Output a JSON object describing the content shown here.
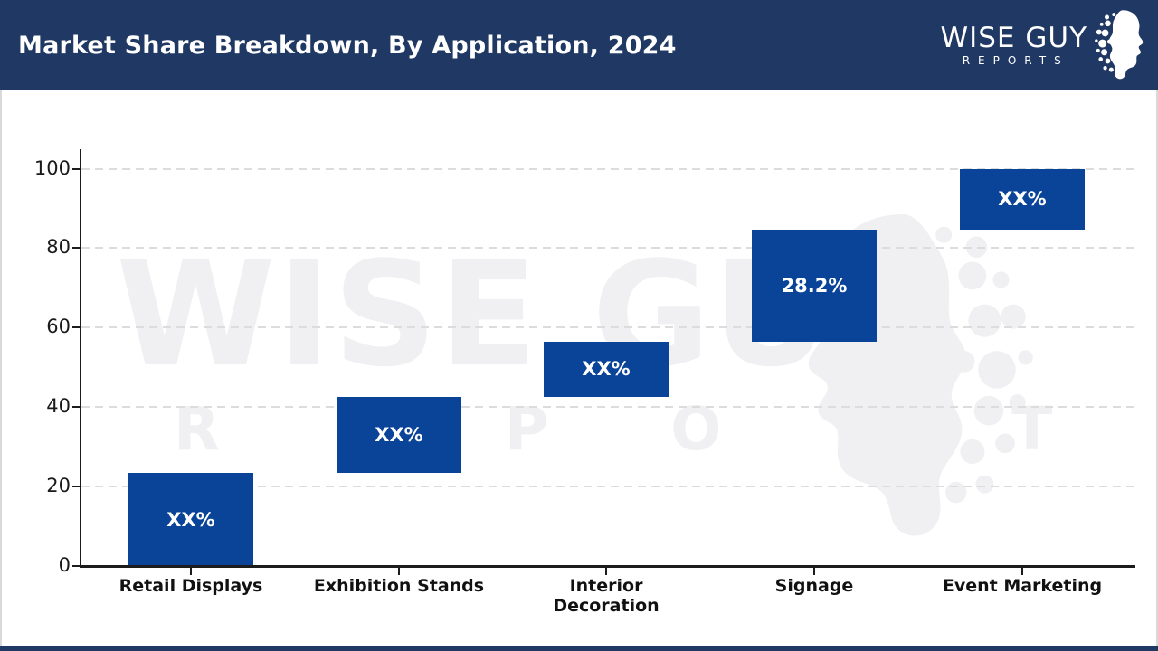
{
  "header": {
    "title": "Market Share Breakdown, By Application, 2024",
    "logo": {
      "wordmark": "WISE GUY",
      "subtitle": "REPORTS"
    }
  },
  "watermark": {
    "wordmark": "WISE GUY",
    "subtitle": "R E P O R T S"
  },
  "chart_data": {
    "type": "bar",
    "subtype": "waterfall",
    "title": "Market Share Breakdown, By Application, 2024",
    "categories": [
      "Retail Displays",
      "Exhibition Stands",
      "Interior\nDecoration",
      "Signage",
      "Event Marketing"
    ],
    "segments": [
      {
        "category": "Retail Displays",
        "start": 0,
        "end": 23.4,
        "label": "XX%"
      },
      {
        "category": "Exhibition Stands",
        "start": 23.4,
        "end": 42.5,
        "label": "XX%"
      },
      {
        "category": "Interior Decoration",
        "start": 42.5,
        "end": 56.5,
        "label": "XX%"
      },
      {
        "category": "Signage",
        "start": 56.5,
        "end": 84.7,
        "label": "28.2%"
      },
      {
        "category": "Event Marketing",
        "start": 84.7,
        "end": 100,
        "label": "XX%"
      }
    ],
    "yticks": [
      0,
      20,
      40,
      60,
      80,
      100
    ],
    "ylim": [
      0,
      105
    ],
    "xlabel": "",
    "ylabel": "",
    "grid": "horizontal-dashed",
    "legend": "none",
    "colors": {
      "bar": "#0a4499",
      "bar_label": "#ffffff",
      "axis": "#1c1c1c",
      "tick_label": "#1a1a1a",
      "gridline": "#dcdcdc"
    }
  },
  "theme": {
    "header_bg": "#203864",
    "footer_bg": "#203864",
    "watermark_color": "#f0f0f2"
  }
}
